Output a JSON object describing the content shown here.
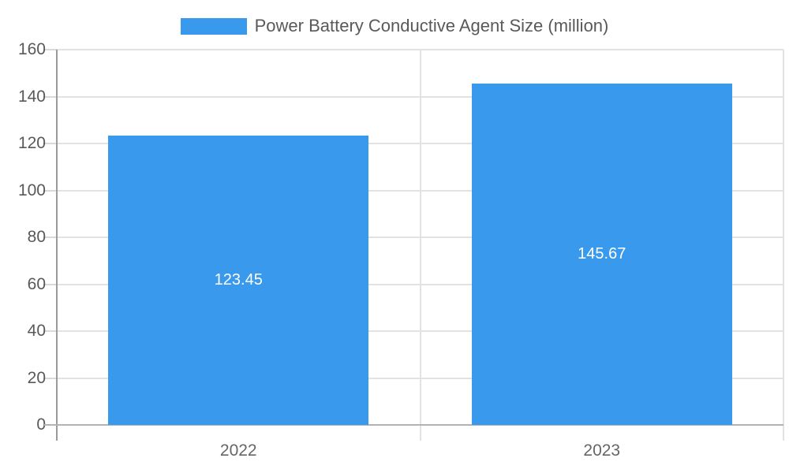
{
  "chart_data": {
    "type": "bar",
    "title": "Power Battery Conductive Agent Size (million)",
    "categories": [
      "2022",
      "2023"
    ],
    "series": [
      {
        "name": "Power Battery Conductive Agent Size (million)",
        "color": "#3999EC",
        "values": [
          123.45,
          145.67
        ]
      }
    ],
    "value_labels": [
      "123.45",
      "145.67"
    ],
    "xlabel": "",
    "ylabel": "",
    "ylim": [
      0,
      160
    ],
    "yticks": [
      0,
      20,
      40,
      60,
      80,
      100,
      120,
      140,
      160
    ],
    "grid": true,
    "legend": {
      "entries": [
        "Power Battery Conductive Agent Size (million)"
      ],
      "position": "top-center"
    }
  },
  "colors": {
    "bar": "#3999EC",
    "bar_label": "#FFFFFF",
    "grid": "#E2E2E2",
    "tick": "#D9D9D9",
    "axis_y": "#9B9B9B",
    "axis_x": "#B3B3B3",
    "axis_label": "#595959",
    "x_label": "#666666",
    "legend_text": "#595959",
    "background": "#FFFFFF"
  }
}
